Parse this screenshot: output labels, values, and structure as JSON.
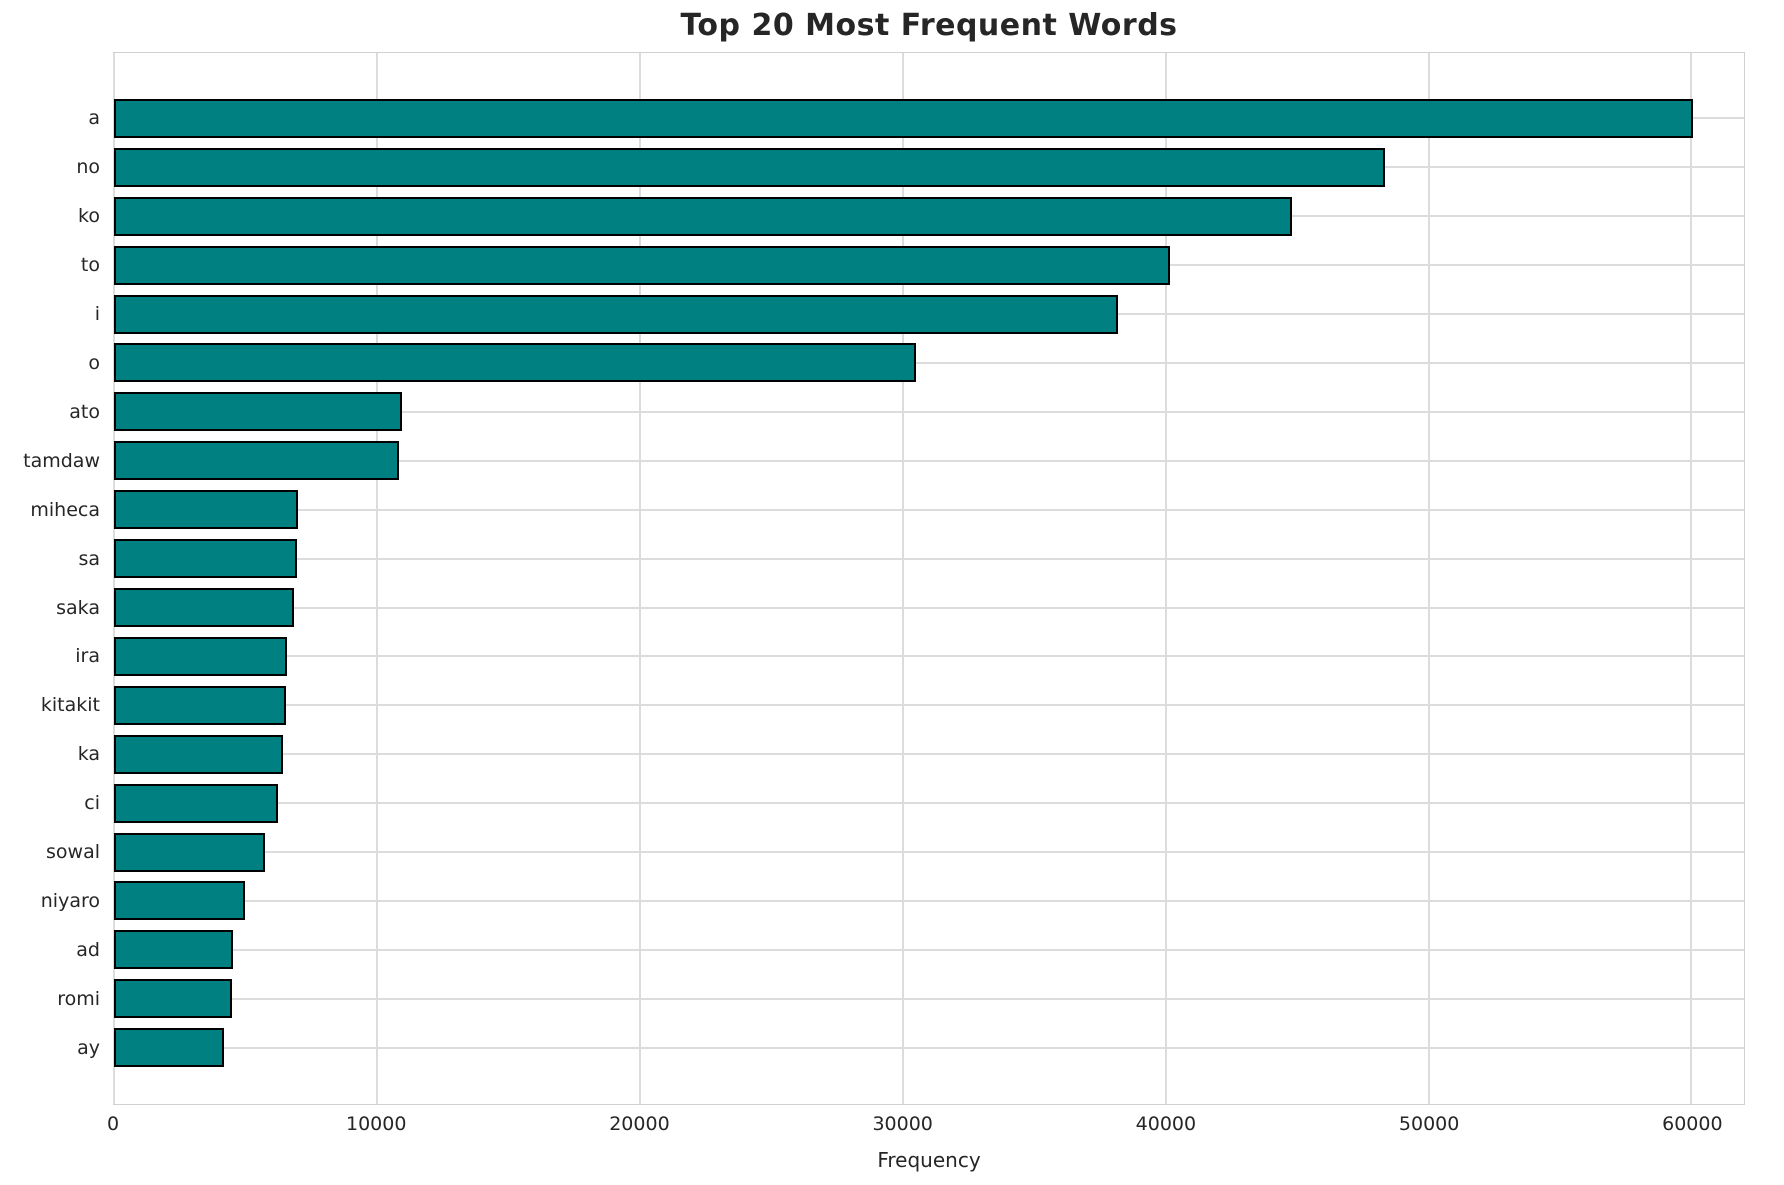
{
  "title": "Top 20 Most Frequent Words",
  "chart_data": {
    "type": "bar",
    "orientation": "horizontal",
    "title": "Top 20 Most Frequent Words",
    "xlabel": "Frequency",
    "ylabel": "",
    "categories": [
      "a",
      "no",
      "ko",
      "to",
      "i",
      "o",
      "ato",
      "tamdaw",
      "miheca",
      "sa",
      "saka",
      "ira",
      "kitakit",
      "ka",
      "ci",
      "sowal",
      "niyaro",
      "ad",
      "romi",
      "ay"
    ],
    "values": [
      59900,
      48200,
      44650,
      40000,
      38050,
      30350,
      10820,
      10700,
      6850,
      6800,
      6700,
      6420,
      6380,
      6270,
      6080,
      5580,
      4840,
      4380,
      4330,
      4020
    ],
    "xticks": [
      0,
      10000,
      20000,
      30000,
      40000,
      50000,
      60000
    ],
    "xlim": [
      0,
      62000
    ],
    "grid": true,
    "legend": false,
    "bar_color": "#008080",
    "bar_edge_color": "#000000",
    "grid_color": "#dcdcdc",
    "text_color": "#262626"
  }
}
